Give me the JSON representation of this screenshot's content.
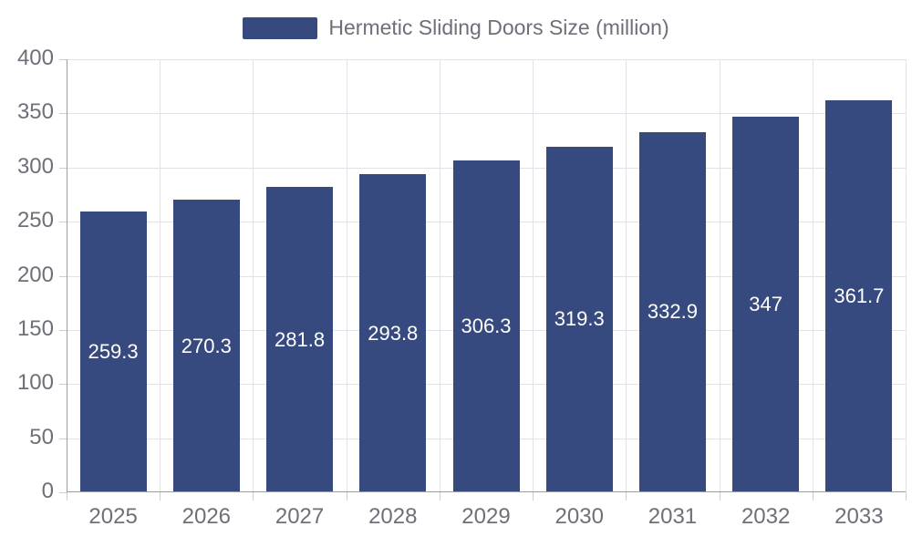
{
  "chart_data": {
    "type": "bar",
    "title": "",
    "legend": "Hermetic Sliding Doors Size (million)",
    "legend_position": "top-center",
    "categories": [
      "2025",
      "2026",
      "2027",
      "2028",
      "2029",
      "2030",
      "2031",
      "2032",
      "2033"
    ],
    "series": [
      {
        "name": "Hermetic Sliding Doors Size (million)",
        "values": [
          259.3,
          270.3,
          281.8,
          293.8,
          306.3,
          319.3,
          332.9,
          347,
          361.7
        ]
      }
    ],
    "value_labels": [
      "259.3",
      "270.3",
      "281.8",
      "293.8",
      "306.3",
      "319.3",
      "332.9",
      "347",
      "361.7"
    ],
    "xlabel": "",
    "ylabel": "",
    "ylim": [
      0,
      400
    ],
    "y_ticks": [
      0,
      50,
      100,
      150,
      200,
      250,
      300,
      350,
      400
    ],
    "grid": true,
    "colors": {
      "bar": "#374a80",
      "axis_text": "#6e7079",
      "bar_label_text": "#ffffff",
      "grid_line": "#e1e3e8",
      "axis_line": "#9a9da3",
      "tick": "#c9ccd3"
    }
  }
}
